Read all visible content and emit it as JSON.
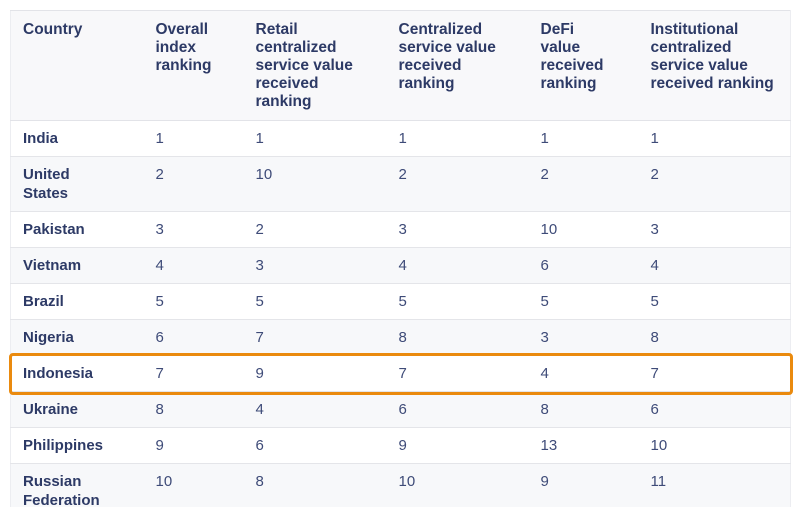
{
  "colors": {
    "highlight_border": "#EA8A0E",
    "header_text": "#2D3A66",
    "cell_text": "#3E4B78",
    "alt_row_bg": "#F7F8FA",
    "row_border": "#E4E5E9"
  },
  "table": {
    "columns": [
      "Country",
      "Overall index ranking",
      "Retail centralized service value received ranking",
      "Centralized service value received ranking",
      "DeFi value received ranking",
      "Institutional centralized service value received ranking"
    ],
    "highlighted_country": "Indonesia",
    "rows": [
      {
        "country": "India",
        "values": [
          "1",
          "1",
          "1",
          "1",
          "1"
        ],
        "highlighted": false
      },
      {
        "country": "United States",
        "values": [
          "2",
          "10",
          "2",
          "2",
          "2"
        ],
        "highlighted": false
      },
      {
        "country": "Pakistan",
        "values": [
          "3",
          "2",
          "3",
          "10",
          "3"
        ],
        "highlighted": false
      },
      {
        "country": "Vietnam",
        "values": [
          "4",
          "3",
          "4",
          "6",
          "4"
        ],
        "highlighted": false
      },
      {
        "country": "Brazil",
        "values": [
          "5",
          "5",
          "5",
          "5",
          "5"
        ],
        "highlighted": false
      },
      {
        "country": "Nigeria",
        "values": [
          "6",
          "7",
          "8",
          "3",
          "8"
        ],
        "highlighted": false
      },
      {
        "country": "Indonesia",
        "values": [
          "7",
          "9",
          "7",
          "4",
          "7"
        ],
        "highlighted": true
      },
      {
        "country": "Ukraine",
        "values": [
          "8",
          "4",
          "6",
          "8",
          "6"
        ],
        "highlighted": false
      },
      {
        "country": "Philippines",
        "values": [
          "9",
          "6",
          "9",
          "13",
          "10"
        ],
        "highlighted": false
      },
      {
        "country": "Russian Federation",
        "values": [
          "10",
          "8",
          "10",
          "9",
          "11"
        ],
        "highlighted": false
      }
    ]
  }
}
